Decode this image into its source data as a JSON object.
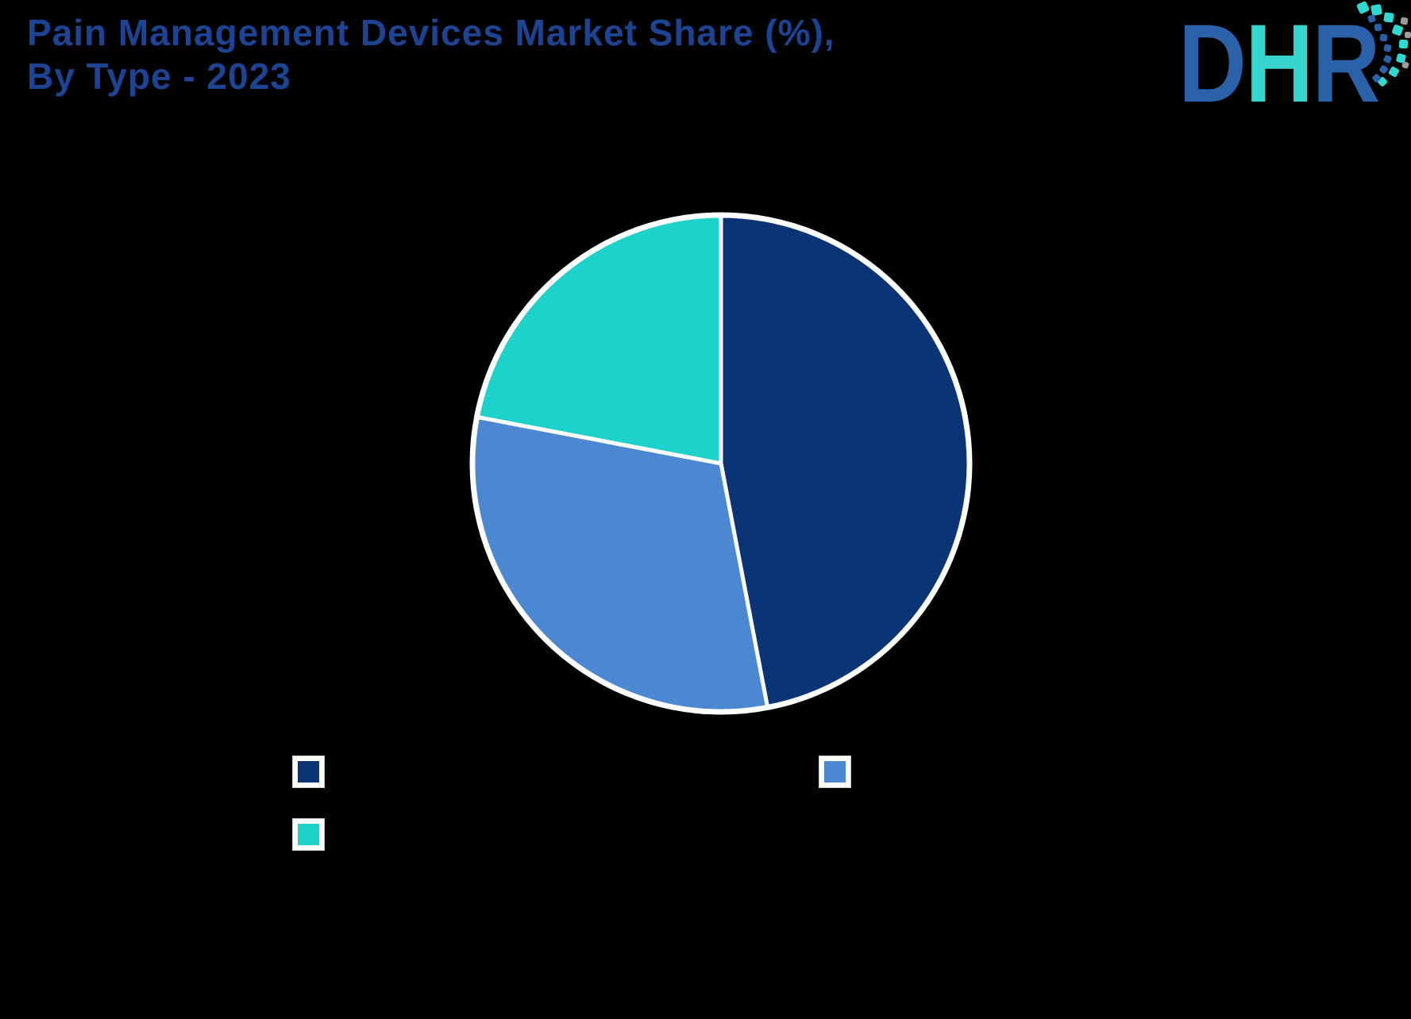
{
  "title": {
    "line1": "Pain Management Devices Market Share (%),",
    "line2": "By Type - 2023",
    "color": "#1D4493"
  },
  "logo": {
    "letters": [
      {
        "char": "D",
        "color": "#2A61A9"
      },
      {
        "char": "H",
        "color": "#38D5CE"
      },
      {
        "char": "R",
        "color": "#2A61A9"
      }
    ],
    "palette": {
      "blue": "#2A61A9",
      "teal": "#2FD8D0",
      "gray": "#9B9B9B"
    }
  },
  "chart_data": {
    "type": "pie",
    "title": "Pain Management Devices Market Share (%), By Type - 2023",
    "start_angle_deg": 0,
    "direction": "clockwise",
    "slice_labels_visible": false,
    "slices": [
      {
        "value": 47,
        "color": "#0B3476"
      },
      {
        "value": 31,
        "color": "#4C87D2"
      },
      {
        "value": 22,
        "color": "#1DD2CB"
      }
    ],
    "separator_color": "#FFFFFF"
  },
  "legend": {
    "labels_visible": false,
    "items": [
      {
        "swatch_color": "#0B3476"
      },
      {
        "swatch_color": "#4C87D2"
      },
      {
        "swatch_color": "#1DD2CB"
      }
    ]
  }
}
